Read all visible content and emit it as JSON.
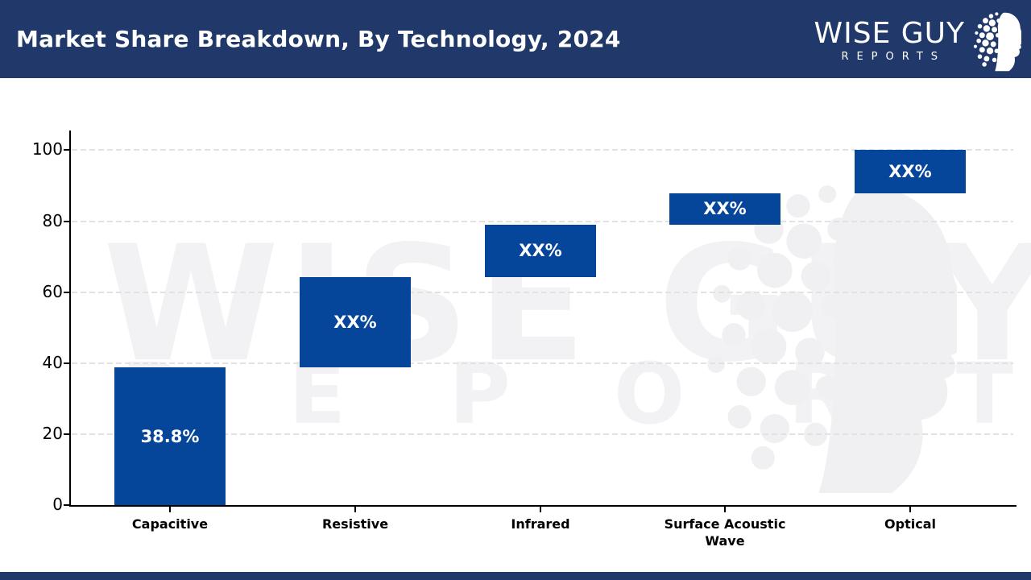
{
  "header": {
    "title": "Market Share Breakdown, By Technology, 2024",
    "logo": {
      "primary": "WISE GUY",
      "secondary": "REPORTS"
    }
  },
  "watermark": {
    "primary": "WISE GUY",
    "secondary": "R E P O R T S"
  },
  "colors": {
    "header_bg": "#21396a",
    "bar": "#05459a",
    "bar_label": "#ffffff",
    "grid": "#e2e2e2",
    "axis": "#000000",
    "watermark": "#f2f2f4"
  },
  "chart_data": {
    "type": "bar",
    "subtype": "waterfall",
    "title": "Market Share Breakdown, By Technology, 2024",
    "categories": [
      "Capacitive",
      "Resistive",
      "Infrared",
      "Surface Acoustic Wave",
      "Optical"
    ],
    "bars": [
      {
        "category": "Capacitive",
        "base": 0,
        "top": 38.8,
        "label": "38.8%"
      },
      {
        "category": "Resistive",
        "base": 38.8,
        "top": 64.3,
        "label": "XX%"
      },
      {
        "category": "Infrared",
        "base": 64.3,
        "top": 79.0,
        "label": "XX%"
      },
      {
        "category": "Surface Acoustic Wave",
        "base": 79.0,
        "top": 87.9,
        "label": "XX%"
      },
      {
        "category": "Optical",
        "base": 87.9,
        "top": 100.0,
        "label": "XX%"
      }
    ],
    "xlabel": "",
    "ylabel": "",
    "yticks": [
      0,
      20,
      40,
      60,
      80,
      100
    ],
    "ylim": [
      0,
      105.5
    ],
    "grid": "horizontal-dashed",
    "legend": "none",
    "bar_color": "#05459a",
    "value_label_color": "#ffffff"
  }
}
